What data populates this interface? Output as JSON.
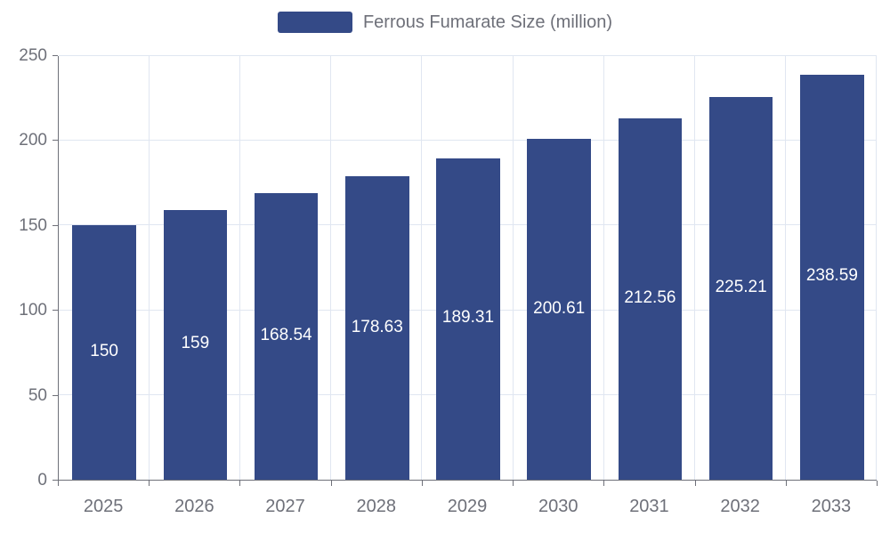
{
  "legend": {
    "label": "Ferrous Fumarate Size (million)"
  },
  "chart_data": {
    "type": "bar",
    "series_name": "Ferrous Fumarate Size (million)",
    "categories": [
      "2025",
      "2026",
      "2027",
      "2028",
      "2029",
      "2030",
      "2031",
      "2032",
      "2033"
    ],
    "values": [
      150,
      159,
      168.54,
      178.63,
      189.31,
      200.61,
      212.56,
      225.21,
      238.59
    ],
    "value_labels": [
      "150",
      "159",
      "168.54",
      "178.63",
      "189.31",
      "200.61",
      "212.56",
      "225.21",
      "238.59"
    ],
    "xlabel": "",
    "ylabel": "",
    "ylim": [
      0,
      250
    ],
    "yticks": [
      0,
      50,
      100,
      150,
      200,
      250
    ],
    "grid": true,
    "legend_position": "top",
    "bar_color": "#344a87",
    "label_color": "#ffffff",
    "axis_text_color": "#6E7079",
    "axis_line_color": "#6E7079",
    "gridline_color": "#E0E6F1"
  }
}
